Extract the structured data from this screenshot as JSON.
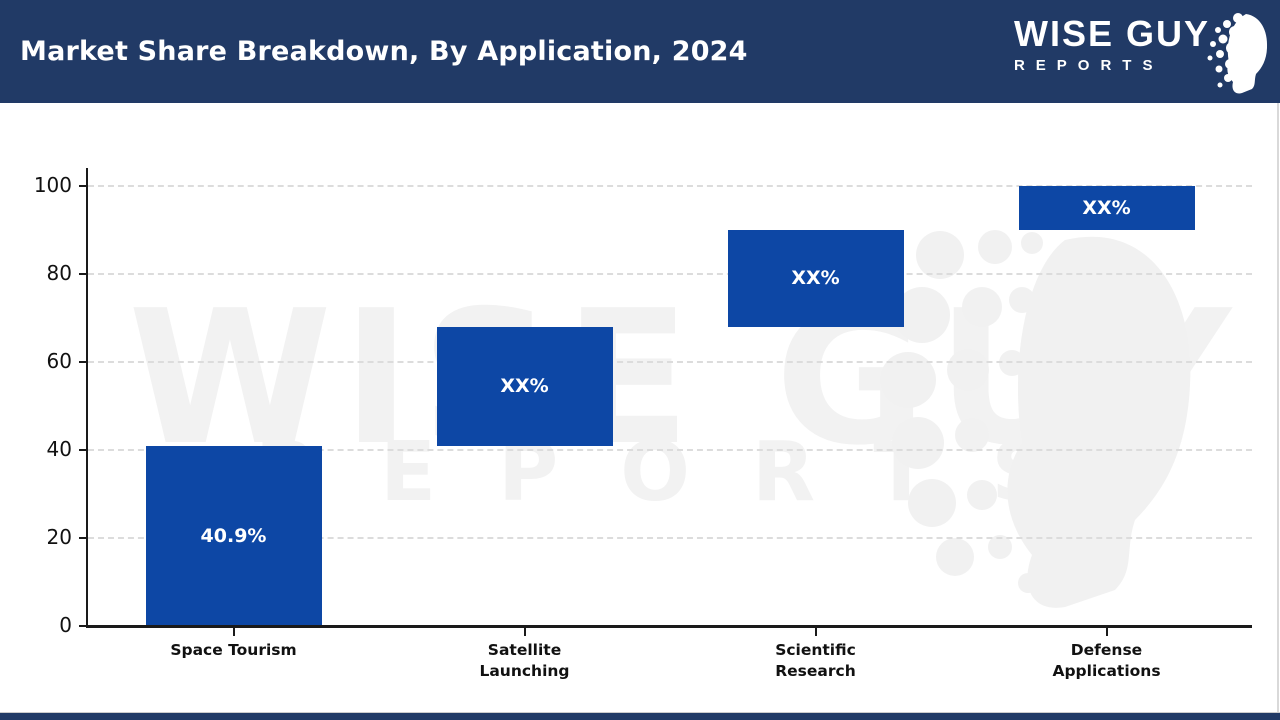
{
  "header": {
    "title": "Market Share Breakdown, By Application, 2024",
    "logo": {
      "line1": "WISE GUY",
      "line2": "REPORTS"
    }
  },
  "watermark": {
    "line1": "WISE GUY",
    "line2": "REPORTS"
  },
  "colors": {
    "header_bg": "#213a66",
    "footer_bg": "#213a66",
    "bar": "#0d47a5",
    "bar_label": "#ffffff",
    "grid": "#dcdcdc",
    "axis": "#1a1a1a",
    "watermark": "#f2f2f2"
  },
  "chart_data": {
    "type": "bar",
    "subtype": "waterfall",
    "title": "Market Share Breakdown, By Application, 2024",
    "categories": [
      {
        "name": "Space Tourism",
        "lines": [
          "Space Tourism"
        ]
      },
      {
        "name": "Satellite Launching",
        "lines": [
          "Satellite",
          "Launching"
        ]
      },
      {
        "name": "Scientific Research",
        "lines": [
          "Scientific",
          "Research"
        ]
      },
      {
        "name": "Defense Applications",
        "lines": [
          "Defense",
          "Applications"
        ]
      }
    ],
    "segments": [
      {
        "category": "Space Tourism",
        "start": 0,
        "end": 40.9,
        "label": "40.9%"
      },
      {
        "category": "Satellite Launching",
        "start": 40.9,
        "end": 68.0,
        "label": "XX%"
      },
      {
        "category": "Scientific Research",
        "start": 68.0,
        "end": 90.0,
        "label": "XX%"
      },
      {
        "category": "Defense Applications",
        "start": 90.0,
        "end": 100.0,
        "label": "XX%"
      }
    ],
    "y_ticks": [
      0,
      20,
      40,
      60,
      80,
      100
    ],
    "ylim": [
      0,
      100
    ],
    "xlabel": "",
    "ylabel": "",
    "grid": "horizontal-dashed",
    "legend": "none"
  }
}
